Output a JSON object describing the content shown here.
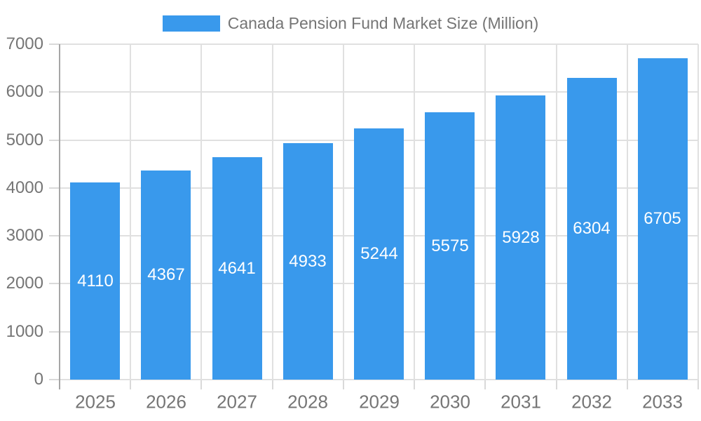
{
  "chart_data": {
    "type": "bar",
    "title": "Canada Pension Fund Market Size (Million)",
    "legend": [
      "Canada Pension Fund Market Size (Million)"
    ],
    "legend_position": "top-center",
    "categories": [
      "2025",
      "2026",
      "2027",
      "2028",
      "2029",
      "2030",
      "2031",
      "2032",
      "2033"
    ],
    "values": [
      4110,
      4367,
      4641,
      4933,
      5244,
      5575,
      5928,
      6304,
      6705
    ],
    "yticks": [
      "0",
      "1000",
      "2000",
      "3000",
      "4000",
      "5000",
      "6000",
      "7000"
    ],
    "ylim": [
      0,
      7000
    ],
    "xlabel": "",
    "ylabel": "",
    "grid": true,
    "value_label_position": "inside-middle",
    "colors": {
      "bar": "#3999EC",
      "axis_text": "#757575",
      "value_label_text": "#FFFFFF",
      "gridline": "#E0E0E0",
      "tick": "#D9D9D9",
      "axis_line": "#A6A6A6",
      "background": "#FFFFFF"
    }
  }
}
